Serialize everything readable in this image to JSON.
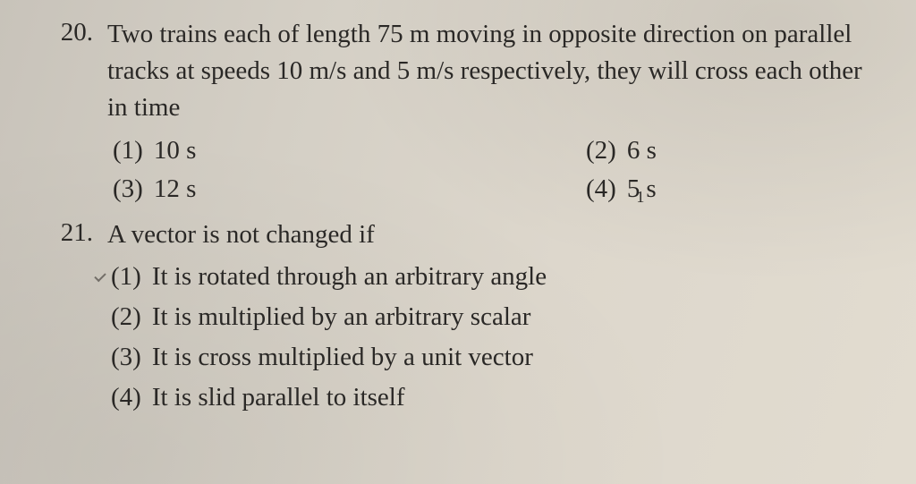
{
  "background_gradient": [
    "#c8c3ba",
    "#d4cfc5",
    "#ddd7cc",
    "#e2dcd0"
  ],
  "text_color": "#2a2826",
  "font_family": "Georgia, Times New Roman, serif",
  "fontsize_body": 29,
  "line_height": 1.42,
  "option_layout_q20": "two-column",
  "option_layout_q21": "single-column",
  "questions": [
    {
      "number": "20.",
      "text": "Two trains each of length 75 m moving in opposite direction on parallel tracks at speeds 10 m/s and 5 m/s respectively, they will cross each other in time",
      "options": [
        {
          "num": "(1)",
          "text": "10 s"
        },
        {
          "num": "(2)",
          "text": "6 s"
        },
        {
          "num": "(3)",
          "text": "12 s"
        },
        {
          "num": "(4)",
          "text": "5 s",
          "has_subscript": "1"
        }
      ]
    },
    {
      "number": "21.",
      "text": "A vector is not changed if",
      "options": [
        {
          "num": "(1)",
          "text": "It is rotated through an arbitrary angle",
          "marked": true
        },
        {
          "num": "(2)",
          "text": "It is multiplied by an arbitrary scalar"
        },
        {
          "num": "(3)",
          "text": "It is cross multiplied by a unit vector"
        },
        {
          "num": "(4)",
          "text": "It is slid parallel to itself"
        }
      ]
    }
  ]
}
